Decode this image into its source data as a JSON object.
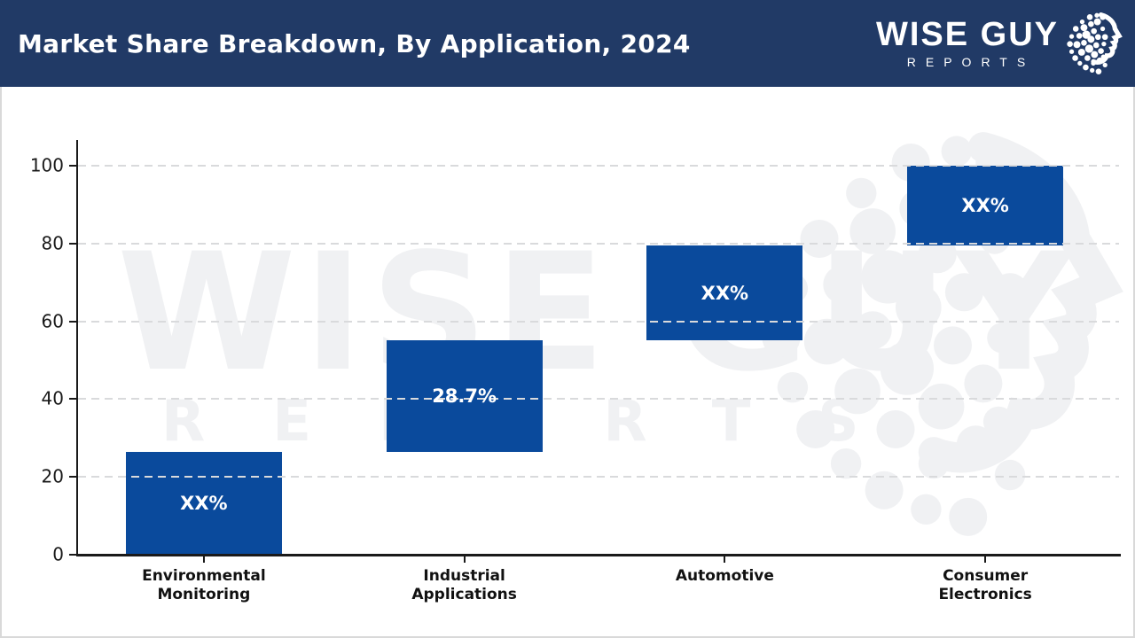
{
  "header": {
    "title": "Market Share Breakdown, By Application, 2024",
    "background_color": "#213a66",
    "logo": {
      "line1": "WISE GUY",
      "line2": "REPORTS"
    }
  },
  "watermark": {
    "line1": "WISE GUY",
    "line2": "REPORTS"
  },
  "chart_data": {
    "type": "bar",
    "subtype": "floating-waterfall",
    "title": "Market Share Breakdown, By Application, 2024",
    "xlabel": "",
    "ylabel": "",
    "ylim": [
      0,
      100
    ],
    "yticks": [
      0,
      20,
      40,
      60,
      80,
      100
    ],
    "grid": "dashed horizontal, drawn over bars",
    "legend": "none",
    "bar_color": "#0a4a9c",
    "bar_label_color": "#ffffff",
    "categories": [
      {
        "label": "Environmental Monitoring",
        "lines": [
          "Environmental",
          "Monitoring"
        ]
      },
      {
        "label": "Industrial Applications",
        "lines": [
          "Industrial",
          "Applications"
        ]
      },
      {
        "label": "Automotive",
        "lines": [
          "Automotive"
        ]
      },
      {
        "label": "Consumer Electronics",
        "lines": [
          "Consumer",
          "Electronics"
        ]
      }
    ],
    "segments": [
      {
        "category": "Environmental Monitoring",
        "start": 0,
        "end": 26.4,
        "value": 26.4,
        "label": "XX%"
      },
      {
        "category": "Industrial Applications",
        "start": 26.4,
        "end": 55.1,
        "value": 28.7,
        "label": "28.7%"
      },
      {
        "category": "Automotive",
        "start": 55.1,
        "end": 79.4,
        "value": 24.3,
        "label": "XX%"
      },
      {
        "category": "Consumer Electronics",
        "start": 79.4,
        "end": 100,
        "value": 20.6,
        "label": "XX%"
      }
    ]
  }
}
